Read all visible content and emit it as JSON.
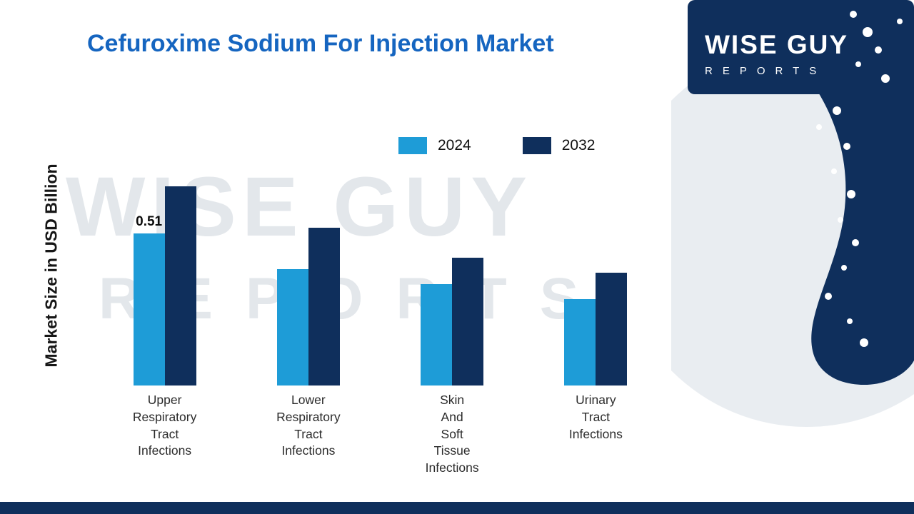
{
  "title": "Cefuroxime Sodium For Injection Market",
  "ylabel": "Market Size in USD Billion",
  "watermark": {
    "line1": "WISE GUY",
    "line2": "REPORTS"
  },
  "logo": {
    "line1": "WISE GUY",
    "line2": "REPORTS"
  },
  "colors": {
    "accent_blue": "#1E9CD7",
    "navy": "#0F2F5C",
    "title_blue": "#1565C0",
    "watermark_gray": "#E3E7EB",
    "circle_gray": "#E9EDF1"
  },
  "chart_data": {
    "type": "bar",
    "categories": [
      "Upper Respiratory Tract Infections",
      "Lower Respiratory Tract Infections",
      "Skin And Soft Tissue Infections",
      "Urinary Tract Infections"
    ],
    "series": [
      {
        "name": "2024",
        "color": "#1E9CD7",
        "values": [
          0.51,
          0.39,
          0.34,
          0.29
        ]
      },
      {
        "name": "2032",
        "color": "#0F2F5C",
        "values": [
          0.67,
          0.53,
          0.43,
          0.38
        ]
      }
    ],
    "title": "Cefuroxime Sodium For Injection Market",
    "xlabel": "",
    "ylabel": "Market Size in USD Billion",
    "ylim": [
      0,
      0.72
    ],
    "grid": false,
    "legend_position": "top",
    "annotations": [
      {
        "series": "2024",
        "category_index": 0,
        "text": "0.51"
      }
    ]
  }
}
